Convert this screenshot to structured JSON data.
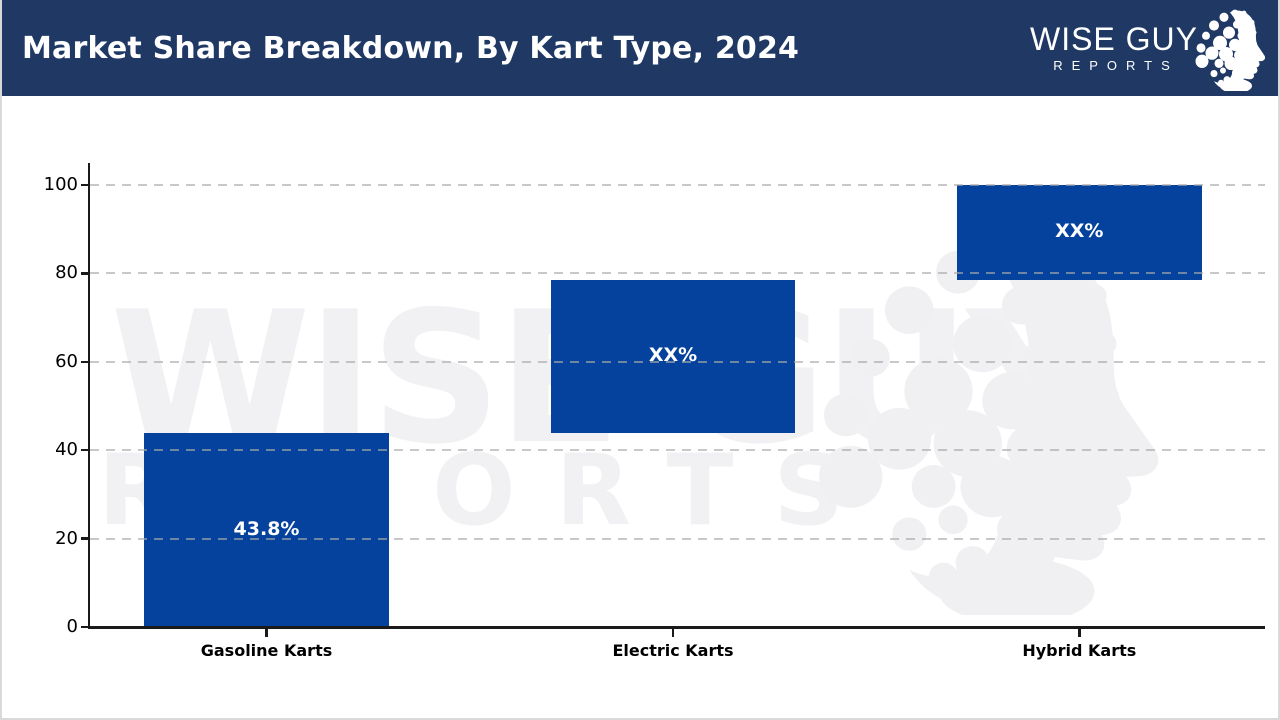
{
  "header": {
    "title": "Market Share Breakdown, By Kart Type, 2024",
    "background_color": "#1f3864",
    "logo": {
      "brand_line1": "WISE GUY",
      "brand_line2": "REPORTS"
    }
  },
  "watermark": {
    "line1": "WISE GUY",
    "line2": "REPORTS"
  },
  "chart_data": {
    "type": "bar",
    "subtype": "waterfall-cumulative",
    "title": "Market Share Breakdown, By Kart Type, 2024",
    "categories": [
      "Gasoline Karts",
      "Electric Karts",
      "Hybrid Karts"
    ],
    "segments": [
      {
        "category": "Gasoline Karts",
        "start": 0,
        "end": 43.8,
        "value": 43.8,
        "label": "43.8%"
      },
      {
        "category": "Electric Karts",
        "start": 43.8,
        "end": 78.6,
        "value": 34.8,
        "label": "XX%"
      },
      {
        "category": "Hybrid Karts",
        "start": 78.6,
        "end": 100,
        "value": 21.4,
        "label": "XX%"
      }
    ],
    "xlabel": "",
    "ylabel": "",
    "ylim": [
      0,
      100
    ],
    "yticks": [
      0,
      20,
      40,
      60,
      80,
      100
    ],
    "grid": "horizontal dashed, drawn over bars",
    "legend": "none",
    "bar_color": "#05429e",
    "bar_label_color": "#ffffff",
    "axis_color": "#1a1a1a",
    "unit": "percent"
  }
}
